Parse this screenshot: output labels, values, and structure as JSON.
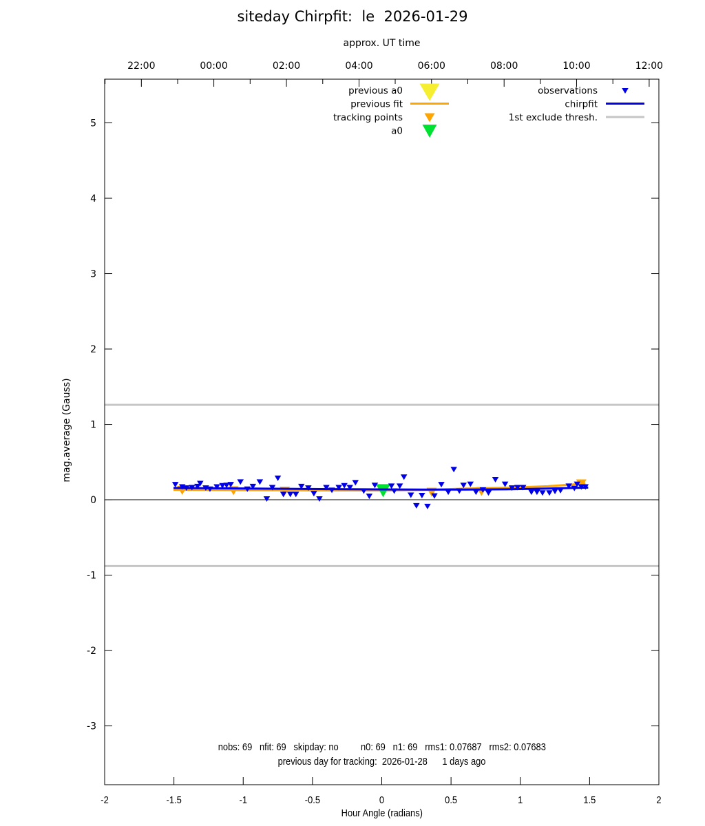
{
  "chart_data": {
    "type": "scatter",
    "title": "siteday Chirpfit:  le  2026-01-29",
    "x2label": "approx. UT time",
    "xlabel": "Hour Angle (radians)",
    "ylabel": "mag.average (Gauss)",
    "xlim": [
      -2,
      2
    ],
    "ylim": [
      -3.78,
      5.58
    ],
    "grid": false,
    "x_ticks": [
      -2,
      -1.5,
      -1,
      -0.5,
      0,
      0.5,
      1,
      1.5,
      2
    ],
    "x_tick_labels": [
      "-2",
      "-1.5",
      "-1",
      "-0.5",
      "0",
      "0.5",
      "1",
      "1.5",
      "2"
    ],
    "y_ticks": [
      -3,
      -2,
      -1,
      0,
      1,
      2,
      3,
      4,
      5
    ],
    "y_tick_labels": [
      "-3",
      "-2",
      "-1",
      "0",
      "1",
      "2",
      "3",
      "4",
      "5"
    ],
    "x2_ticks": [
      {
        "ha": -1.997,
        "label": ""
      },
      {
        "ha": -1.735,
        "label": "22:00"
      },
      {
        "ha": -1.473,
        "label": ""
      },
      {
        "ha": -1.212,
        "label": "00:00"
      },
      {
        "ha": -0.95,
        "label": ""
      },
      {
        "ha": -0.688,
        "label": "02:00"
      },
      {
        "ha": -0.426,
        "label": ""
      },
      {
        "ha": -0.164,
        "label": "04:00"
      },
      {
        "ha": 0.097,
        "label": ""
      },
      {
        "ha": 0.359,
        "label": "06:00"
      },
      {
        "ha": 0.621,
        "label": ""
      },
      {
        "ha": 0.883,
        "label": "08:00"
      },
      {
        "ha": 1.145,
        "label": ""
      },
      {
        "ha": 1.406,
        "label": "10:00"
      },
      {
        "ha": 1.668,
        "label": ""
      },
      {
        "ha": 1.93,
        "label": "12:00"
      }
    ],
    "series": [
      {
        "name": "1st exclude thresh.",
        "type": "hline",
        "color": "#c6c6c6",
        "values": [
          1.26,
          -0.88
        ]
      },
      {
        "name": "previous fit",
        "type": "line",
        "color": "#ffa500",
        "points": [
          [
            -1.503,
            0.133
          ],
          [
            -1.1,
            0.129
          ],
          [
            -0.7,
            0.126
          ],
          [
            -0.35,
            0.124
          ],
          [
            0,
            0.123
          ],
          [
            0.3,
            0.13
          ],
          [
            0.6,
            0.148
          ],
          [
            0.9,
            0.16
          ],
          [
            1.2,
            0.18
          ],
          [
            1.47,
            0.215
          ]
        ]
      },
      {
        "name": "tracking points",
        "type": "scatter",
        "marker": "triangle-medium",
        "color": "#ffa500",
        "points": [
          [
            -1.44,
            0.125
          ],
          [
            -1.07,
            0.12
          ],
          [
            -0.7,
            0.115
          ],
          [
            0.36,
            0.1
          ],
          [
            0.72,
            0.11
          ],
          [
            1.44,
            0.21
          ]
        ]
      },
      {
        "name": "a0",
        "type": "scatter",
        "marker": "triangle-large",
        "color": "#00e132",
        "points": [
          [
            0.01,
            0.12
          ]
        ]
      },
      {
        "name": "chirpfit",
        "type": "line",
        "color": "#0000e6",
        "points": [
          [
            -1.503,
            0.157
          ],
          [
            -1.1,
            0.151
          ],
          [
            -0.7,
            0.145
          ],
          [
            -0.35,
            0.141
          ],
          [
            0,
            0.138
          ],
          [
            0.3,
            0.135
          ],
          [
            0.6,
            0.135
          ],
          [
            0.9,
            0.139
          ],
          [
            1.2,
            0.149
          ],
          [
            1.49,
            0.162
          ]
        ]
      },
      {
        "name": "observations",
        "type": "scatter",
        "marker": "triangle-small",
        "color": "#0000e6",
        "points": [
          [
            -1.49,
            0.2
          ],
          [
            -1.44,
            0.17
          ],
          [
            -1.41,
            0.155
          ],
          [
            -1.37,
            0.16
          ],
          [
            -1.33,
            0.175
          ],
          [
            -1.31,
            0.215
          ],
          [
            -1.27,
            0.155
          ],
          [
            -1.24,
            0.14
          ],
          [
            -1.19,
            0.17
          ],
          [
            -1.15,
            0.185
          ],
          [
            -1.12,
            0.19
          ],
          [
            -1.09,
            0.2
          ],
          [
            -1.02,
            0.235
          ],
          [
            -0.97,
            0.14
          ],
          [
            -0.93,
            0.175
          ],
          [
            -0.88,
            0.235
          ],
          [
            -0.83,
            0.01
          ],
          [
            -0.79,
            0.16
          ],
          [
            -0.75,
            0.285
          ],
          [
            -0.71,
            0.07
          ],
          [
            -0.66,
            0.07
          ],
          [
            -0.62,
            0.07
          ],
          [
            -0.58,
            0.175
          ],
          [
            -0.53,
            0.155
          ],
          [
            -0.49,
            0.08
          ],
          [
            -0.45,
            0.01
          ],
          [
            -0.4,
            0.16
          ],
          [
            -0.36,
            0.125
          ],
          [
            -0.31,
            0.16
          ],
          [
            -0.27,
            0.185
          ],
          [
            -0.23,
            0.16
          ],
          [
            -0.19,
            0.225
          ],
          [
            -0.13,
            0.115
          ],
          [
            -0.09,
            0.045
          ],
          [
            -0.05,
            0.19
          ],
          [
            0.07,
            0.18
          ],
          [
            0.09,
            0.115
          ],
          [
            0.13,
            0.18
          ],
          [
            0.16,
            0.3
          ],
          [
            0.21,
            0.06
          ],
          [
            0.25,
            -0.08
          ],
          [
            0.29,
            0.055
          ],
          [
            0.33,
            -0.09
          ],
          [
            0.38,
            0.05
          ],
          [
            0.43,
            0.2
          ],
          [
            0.48,
            0.1
          ],
          [
            0.52,
            0.4
          ],
          [
            0.56,
            0.115
          ],
          [
            0.59,
            0.19
          ],
          [
            0.64,
            0.205
          ],
          [
            0.68,
            0.1
          ],
          [
            0.73,
            0.128
          ],
          [
            0.77,
            0.09
          ],
          [
            0.82,
            0.265
          ],
          [
            0.89,
            0.205
          ],
          [
            0.94,
            0.155
          ],
          [
            0.98,
            0.16
          ],
          [
            1.02,
            0.16
          ],
          [
            1.08,
            0.1
          ],
          [
            1.12,
            0.1
          ],
          [
            1.16,
            0.09
          ],
          [
            1.21,
            0.09
          ],
          [
            1.25,
            0.11
          ],
          [
            1.29,
            0.12
          ],
          [
            1.35,
            0.18
          ],
          [
            1.39,
            0.15
          ],
          [
            1.41,
            0.205
          ],
          [
            1.44,
            0.17
          ],
          [
            1.47,
            0.17
          ]
        ]
      }
    ],
    "legend": {
      "position": "top-inside",
      "entries": [
        {
          "label": "previous a0",
          "marker": "triangle-xl",
          "color": "#f6ee30",
          "col": 0
        },
        {
          "label": "previous fit",
          "marker": "line",
          "color": "#ffa500",
          "col": 0
        },
        {
          "label": "tracking points",
          "marker": "triangle-medium",
          "color": "#ffa500",
          "col": 0
        },
        {
          "label": "a0",
          "marker": "triangle-large",
          "color": "#00e132",
          "col": 0
        },
        {
          "label": "observations",
          "marker": "triangle-small",
          "color": "#0000e6",
          "col": 1
        },
        {
          "label": "chirpfit",
          "marker": "line",
          "color": "#0000e6",
          "col": 1
        },
        {
          "label": "1st exclude thresh.",
          "marker": "line",
          "color": "#c6c6c6",
          "col": 1
        }
      ]
    },
    "stats": {
      "nobs": 69,
      "nfit": 69,
      "skipday": "no",
      "n0": 69,
      "n1": 69,
      "rms1": 0.07687,
      "rms2": 0.07683,
      "previous_day_for_tracking": "2026-01-28",
      "days_ago": "1 days ago"
    },
    "annotations": [
      "nobs: 69   nfit: 69   skipday: no         n0: 69   n1: 69   rms1: 0.07687   rms2: 0.07683",
      "previous day for tracking:  2026-01-28      1 days ago"
    ]
  }
}
